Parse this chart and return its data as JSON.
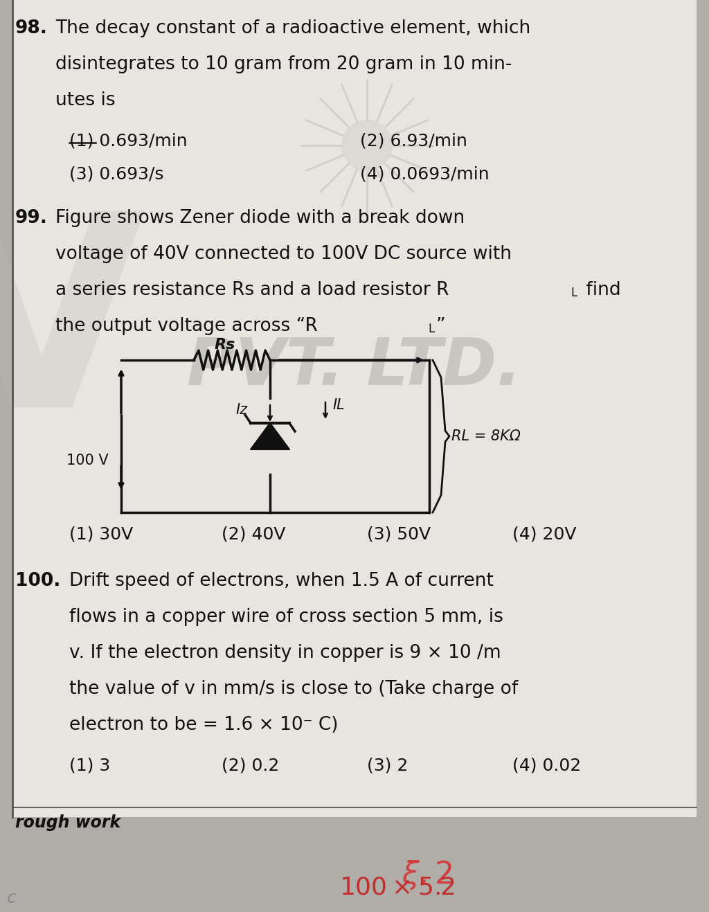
{
  "bg_outer": "#b0aca8",
  "bg_inner": "#e8e4df",
  "text_color": "#111111",
  "q98_num": "98.",
  "q98_line1": "The decay constant of a radioactive element, which",
  "q98_line2": "disintegrates to 10 gram from 20 gram in 10 min-",
  "q98_line3": "utes is",
  "q98_opt1": "(1) 0.693/min",
  "q98_opt2": "(2) 6.93/min",
  "q98_opt3": "(3) 0.693/s",
  "q98_opt4": "(4) 0.0693/min",
  "q99_num": "99.",
  "q99_line1": "Figure shows Zener diode with a break down",
  "q99_line2": "voltage of 40V connected to 100V DC source with",
  "q99_line3a": "a series resistance Rs and a load resistor R",
  "q99_line3_sub": "L",
  "q99_line3b": " find",
  "q99_line4a": "the output voltage across “R",
  "q99_line4_sub": "L",
  "q99_line4b": "”",
  "q99_opt1": "(1) 30V",
  "q99_opt2": "(2) 40V",
  "q99_opt3": "(3) 50V",
  "q99_opt4": "(4) 20V",
  "q100_num": "100.",
  "q100_line1": "Drift speed of electrons, when 1.5 A of current",
  "q100_line2": "flows in a copper wire of cross section 5 mm, is",
  "q100_line3": "v. If the electron density in copper is 9 × 10 /m",
  "q100_line4": "the value of v in mm/s is close to (Take charge of",
  "q100_line5": "electron to be = 1.6 × 10⁻ C)",
  "q100_opt1": "(1) 3",
  "q100_opt2": "(2) 0.2",
  "q100_opt3": "(3) 2",
  "q100_opt4": "(4) 0.02",
  "rough_work": "rough work",
  "circuit_100v": "100 V",
  "circuit_rs": "Rs",
  "circuit_iz": "Iz",
  "circuit_il": "IL",
  "circuit_rl": "RL = 8KΩ"
}
